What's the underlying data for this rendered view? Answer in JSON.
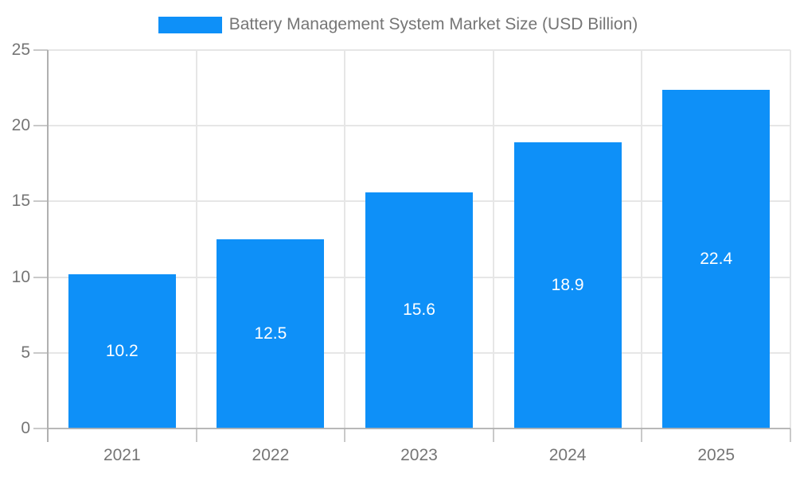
{
  "chart_data": {
    "type": "bar",
    "title": "Battery Management System Market Size (USD Billion)",
    "categories": [
      "2021",
      "2022",
      "2023",
      "2024",
      "2025"
    ],
    "values": [
      10.2,
      12.5,
      15.6,
      18.9,
      22.4
    ],
    "value_labels": [
      "10.2",
      "12.5",
      "15.6",
      "18.9",
      "22.4"
    ],
    "xlabel": "",
    "ylabel": "",
    "ylim": [
      0,
      25
    ],
    "yticks": [
      0,
      5,
      10,
      15,
      20,
      25
    ],
    "grid": true,
    "legend_position": "top",
    "colors": {
      "bar": "#0e90f8",
      "grid": "#e6e6e6",
      "axis": "#b0b0b0",
      "tick": "#c9c9c9",
      "text": "#757575",
      "value_label": "#ffffff",
      "background": "#ffffff"
    }
  }
}
